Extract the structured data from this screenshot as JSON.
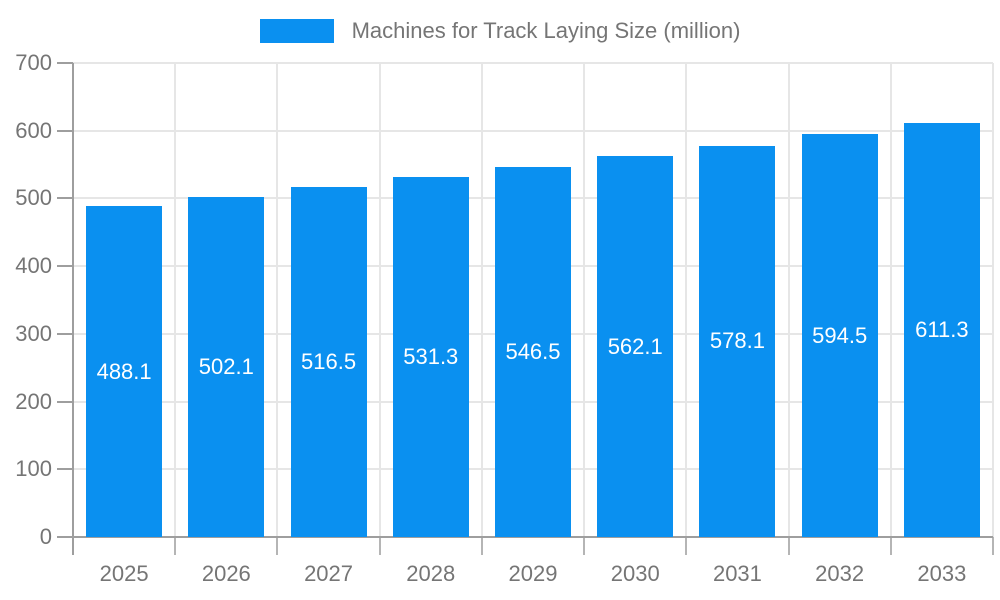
{
  "chart_data": {
    "type": "bar",
    "title": "Machines for Track Laying Size (million)",
    "categories": [
      "2025",
      "2026",
      "2027",
      "2028",
      "2029",
      "2030",
      "2031",
      "2032",
      "2033"
    ],
    "values": [
      488.1,
      502.1,
      516.5,
      531.3,
      546.5,
      562.1,
      578.1,
      594.5,
      611.3
    ],
    "value_labels": [
      "488.1",
      "502.1",
      "516.5",
      "531.3",
      "546.5",
      "562.1",
      "578.1",
      "594.5",
      "611.3"
    ],
    "xlabel": "",
    "ylabel": "",
    "ylim": [
      0,
      700
    ],
    "yticks": [
      0,
      100,
      200,
      300,
      400,
      500,
      600,
      700
    ],
    "grid": true,
    "legend_position": "top-center",
    "colors": {
      "bar": "#0a90f0",
      "grid": "#e6e6e6",
      "axis": "#9e9e9e",
      "tick": "#b5b5b5",
      "text": "#757575",
      "bar_label": "#ffffff"
    }
  }
}
